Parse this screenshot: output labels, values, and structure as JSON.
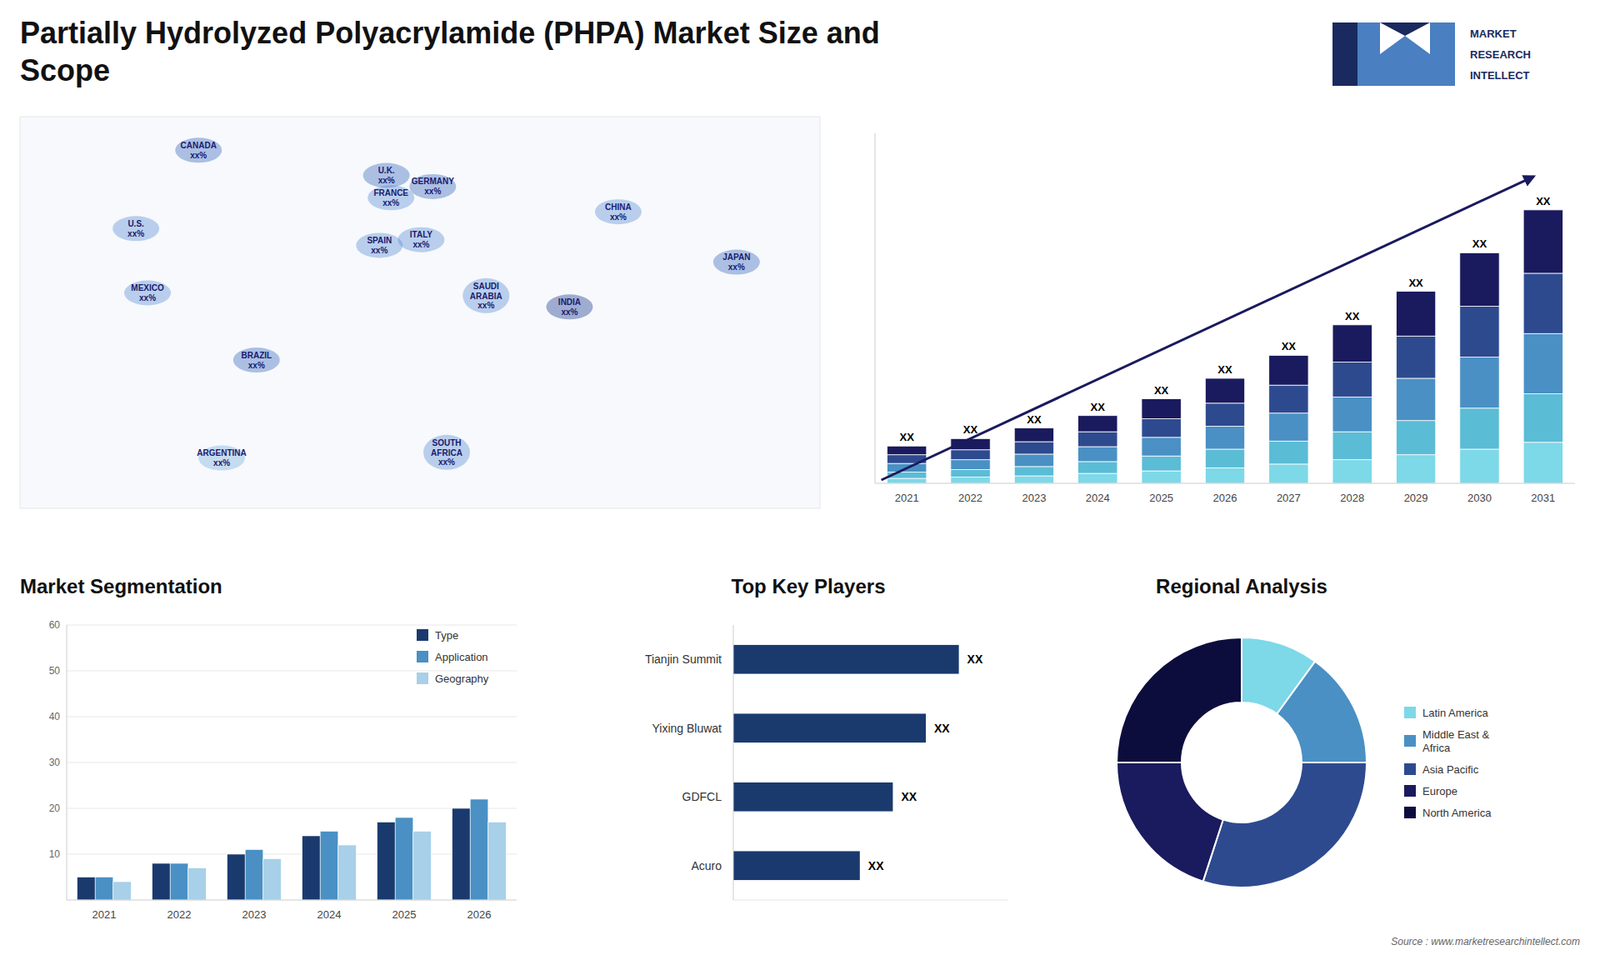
{
  "chart_data": [
    {
      "type": "map",
      "title": "Partially Hydrolyzed Polyacrylamide (PHPA) Market Size and\nScope",
      "categories": [
        "U.S.",
        "CANADA",
        "MEXICO",
        "BRAZIL",
        "ARGENTINA",
        "U.K.",
        "FRANCE",
        "SPAIN",
        "GERMANY",
        "ITALY",
        "SAUDI\nARABIA",
        "SOUTH\nAFRICA",
        "CHINA",
        "INDIA",
        "JAPAN"
      ],
      "x": [
        -120,
        -93,
        -115,
        -68,
        -83,
        -12,
        -10,
        -15,
        8,
        3,
        31,
        14,
        88,
        67,
        139
      ],
      "y": [
        42,
        70,
        19,
        -5,
        -40,
        61,
        53,
        36,
        57,
        38,
        18,
        -38,
        48,
        14,
        30
      ],
      "value_labels": [
        "xx%",
        "xx%",
        "xx%",
        "xx%",
        "xx%",
        "xx%",
        "xx%",
        "xx%",
        "xx%",
        "xx%",
        "xx%",
        "xx%",
        "xx%",
        "xx%",
        "xx%"
      ],
      "colors": [
        "#5a8fd4",
        "#3a6abf",
        "#5a8fd4",
        "#3a6abf",
        "#7ab0de",
        "#3a6abf",
        "#5a8fd4",
        "#5a8fd4",
        "#3a6abf",
        "#5a8fd4",
        "#5a8fd4",
        "#5a8fd4",
        "#5a8fd4",
        "#1a3a8e",
        "#3a6abf"
      ],
      "xlim": [
        -170,
        175
      ],
      "ylim": [
        -58,
        82
      ],
      "tick_labels": false,
      "annotations": [
        "MARKET",
        "RESEARCH",
        "INTELLECT"
      ]
    },
    {
      "type": "bar",
      "stacked": true,
      "categories": [
        "2021",
        "2022",
        "2023",
        "2024",
        "2025",
        "2026",
        "2027",
        "2028",
        "2029",
        "2030",
        "2031"
      ],
      "series": [
        {
          "color": "#7dd8e8",
          "values": [
            0.4,
            0.5,
            0.6,
            0.8,
            1.0,
            1.25,
            1.55,
            1.9,
            2.3,
            2.75,
            3.3
          ]
        },
        {
          "color": "#5bbcd6",
          "values": [
            0.5,
            0.6,
            0.75,
            0.95,
            1.2,
            1.5,
            1.85,
            2.25,
            2.75,
            3.3,
            3.9
          ]
        },
        {
          "color": "#4a90c4",
          "values": [
            0.7,
            0.8,
            1.0,
            1.2,
            1.5,
            1.85,
            2.25,
            2.8,
            3.4,
            4.1,
            4.85
          ]
        },
        {
          "color": "#2e4a8f",
          "values": [
            0.7,
            0.8,
            1.0,
            1.2,
            1.5,
            1.85,
            2.25,
            2.8,
            3.4,
            4.1,
            4.85
          ]
        },
        {
          "color": "#1a1a5e",
          "values": [
            0.7,
            0.9,
            1.1,
            1.3,
            1.6,
            2.0,
            2.4,
            3.0,
            3.6,
            4.3,
            5.1
          ]
        }
      ],
      "ylim": [
        0,
        28.16
      ],
      "tick_labels": "x",
      "annotations": [
        "XX",
        "XX",
        "XX",
        "XX",
        "XX",
        "XX",
        "XX",
        "XX",
        "XX",
        "XX",
        "XX"
      ]
    },
    {
      "type": "bar",
      "title": "Market Segmentation",
      "categories": [
        "2021",
        "2022",
        "2023",
        "2024",
        "2025",
        "2026"
      ],
      "series": [
        {
          "name": "Type",
          "color": "#1a3a6e",
          "values": [
            5,
            8,
            10,
            14,
            17,
            20
          ]
        },
        {
          "name": "Application",
          "color": "#4a90c4",
          "values": [
            5,
            8,
            11,
            15,
            18,
            22
          ]
        },
        {
          "name": "Geography",
          "color": "#a8d0e8",
          "values": [
            4,
            7,
            9,
            12,
            15,
            17
          ]
        }
      ],
      "ylim": [
        0,
        60
      ],
      "yticks": [
        10,
        20,
        30,
        40,
        50,
        60
      ],
      "grid": true,
      "legend": "upper right"
    },
    {
      "type": "bar",
      "orientation": "horizontal",
      "title": "Top Key Players",
      "categories": [
        "Tianjin Summit",
        "Yixing Bluwat",
        "GDFCL",
        "Acuro"
      ],
      "values": [
        0.82,
        0.7,
        0.58,
        0.46
      ],
      "value_labels": [
        "XX",
        "XX",
        "XX",
        "XX"
      ],
      "xlim": [
        0,
        1
      ],
      "color": "#1a3a6e"
    },
    {
      "type": "donut",
      "title": "Regional Analysis",
      "categories": [
        "Latin America",
        "Middle East &\nAfrica",
        "Asia Pacific",
        "Europe",
        "North America"
      ],
      "values": [
        10,
        15,
        30,
        20,
        25
      ],
      "colors": [
        "#7dd8e8",
        "#4a90c4",
        "#2e4a8f",
        "#1a1a5e",
        "#0d0d3d"
      ],
      "legend": "right",
      "annotations": [
        "Source : www.marketresearchintellect.com"
      ]
    }
  ]
}
